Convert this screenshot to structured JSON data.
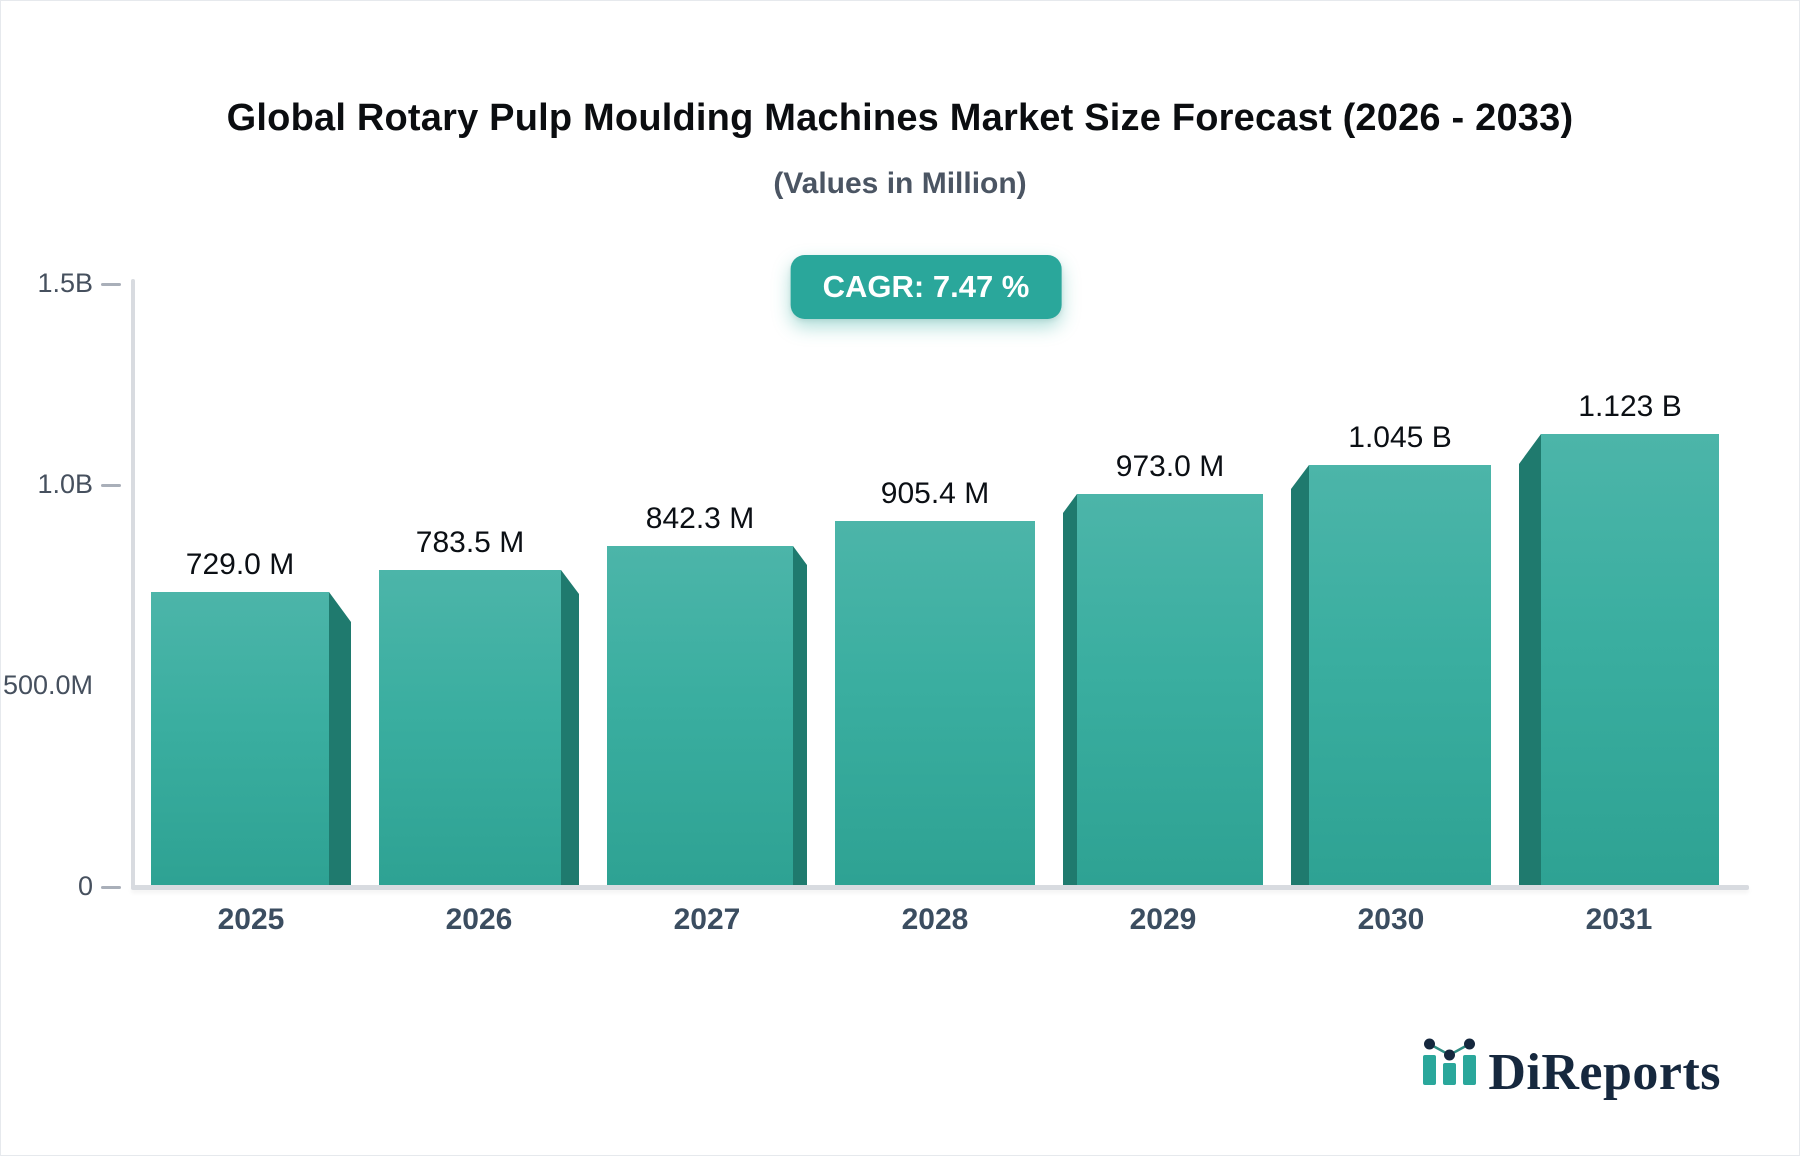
{
  "header": {
    "title": "Global Rotary Pulp Moulding Machines Market Size Forecast (2026 - 2033)",
    "subtitle": "(Values in Million)",
    "cagr_badge": "CAGR: 7.47 %"
  },
  "chart_data": {
    "type": "bar",
    "title": "Global Rotary Pulp Moulding Machines Market Size Forecast (2026 - 2033)",
    "subtitle": "(Values in Million)",
    "annotation": "CAGR: 7.47 %",
    "categories": [
      "2025",
      "2026",
      "2027",
      "2028",
      "2029",
      "2030",
      "2031"
    ],
    "values_million": [
      729.0,
      783.5,
      842.3,
      905.4,
      973.0,
      1045.0,
      1123.0
    ],
    "bar_labels": [
      "729.0 M",
      "783.5 M",
      "842.3 M",
      "905.4 M",
      "973.0 M",
      "1.045 B",
      "1.123 B"
    ],
    "xlabel": "",
    "ylabel": "",
    "ylim_million": [
      0,
      1500
    ],
    "y_ticks": [
      {
        "label": "1.5B",
        "value_million": 1500,
        "dash": true
      },
      {
        "label": "1.0B",
        "value_million": 1000,
        "dash": true
      },
      {
        "label": "500.0M",
        "value_million": 500,
        "dash": false
      },
      {
        "label": "0",
        "value_million": 0,
        "dash": true
      }
    ],
    "grid": false,
    "legend": "none",
    "colors": {
      "bar_top": "#4cb5a9",
      "bar_bottom": "#2ea293",
      "bar_side_shadow": "#1f7a6e",
      "badge": "#2aa79b",
      "axis_line": "#d8dbe0",
      "tick_text": "#46505e",
      "value_label_text": "#0b0f14",
      "category_text": "#3b4d60"
    }
  },
  "logo": {
    "text": "DiReports",
    "icon": "bar-chart-logo-icon",
    "navy": "#16283e",
    "teal": "#2aa79b"
  }
}
